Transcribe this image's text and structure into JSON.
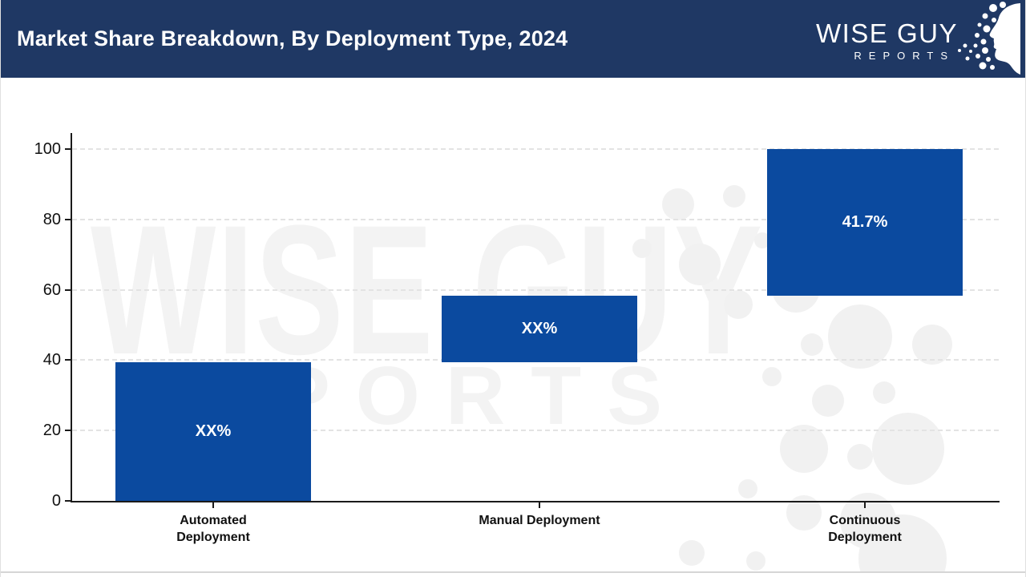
{
  "header": {
    "title": "Market Share Breakdown, By Deployment Type, 2024",
    "logo_line1": "WISE GUY",
    "logo_line2": "REPORTS"
  },
  "watermark": {
    "line1": "WISE GUY",
    "line2": "REPORTS"
  },
  "colors": {
    "header_bg": "#1f3864",
    "bar": "#0b4a9f",
    "bar_label": "#ffffff",
    "grid": "#e3e3e3",
    "axis": "#1a1a1a",
    "watermark": "#f3f3f3"
  },
  "chart_data": {
    "type": "bar",
    "subtype": "floating-waterfall",
    "title": "Market Share Breakdown, By Deployment Type, 2024",
    "xlabel": "",
    "ylabel": "",
    "ylim": [
      0,
      100
    ],
    "yticks": [
      0,
      20,
      40,
      60,
      80,
      100
    ],
    "grid": "dashed-horizontal",
    "legend": false,
    "categories": [
      "Automated\nDeployment",
      "Manual Deployment",
      "Continuous\nDeployment"
    ],
    "segments": [
      {
        "category": "Automated Deployment",
        "from": 0,
        "to": 39.4,
        "label": "XX%"
      },
      {
        "category": "Manual Deployment",
        "from": 39.4,
        "to": 58.3,
        "label": "XX%"
      },
      {
        "category": "Continuous Deployment",
        "from": 58.3,
        "to": 100,
        "label": "41.7%"
      }
    ]
  }
}
